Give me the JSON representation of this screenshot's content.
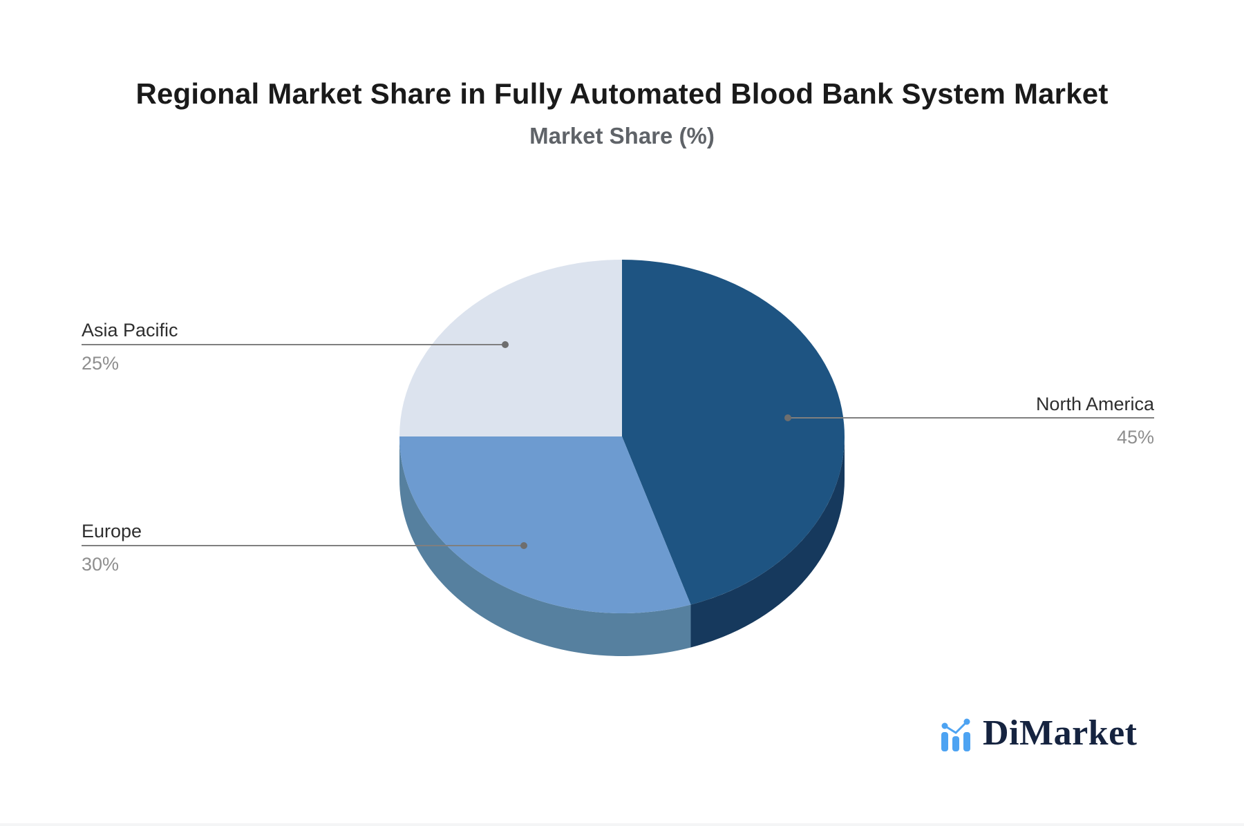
{
  "chart": {
    "title": "Regional Market Share in Fully Automated Blood Bank System Market",
    "subtitle": "Market Share (%)"
  },
  "chart_data": {
    "type": "pie",
    "title": "Regional Market Share in Fully Automated Blood Bank System Market",
    "subtitle": "Market Share (%)",
    "unit": "%",
    "effect": "3d",
    "direction": "clockwise",
    "start_angle_deg": 0,
    "slices": [
      {
        "label": "North America",
        "value": 45,
        "display": "45%",
        "color": "#1e5482",
        "side_color": "#16395d"
      },
      {
        "label": "Europe",
        "value": 30,
        "display": "30%",
        "color": "#6d9bd0",
        "side_color": "#56809f"
      },
      {
        "label": "Asia Pacific",
        "value": 25,
        "display": "25%",
        "color": "#dce3ee",
        "side_color": "#b9c4d4"
      }
    ],
    "legend_position": "none",
    "label_name_color": "#2e2e2e",
    "label_value_color": "#8e8e8e",
    "leader_line_color": "#7f7f7f",
    "leader_dot_color": "#6e6e6e"
  },
  "logo": {
    "text": "DiMarket",
    "icon": "bar-line-chart-icon",
    "icon_color": "#4da3f2",
    "text_color": "#15233f"
  }
}
